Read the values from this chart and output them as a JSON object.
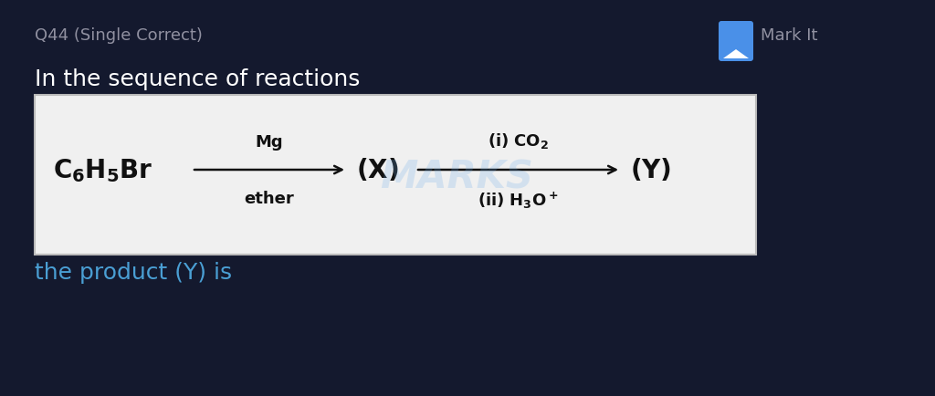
{
  "bg_color": "#14192e",
  "header_text": "Q44 (Single Correct)",
  "header_color": "#9090a0",
  "header_fontsize": 13,
  "mark_it_text": "Mark It",
  "mark_it_color": "#9090a0",
  "mark_it_fontsize": 13,
  "bookmark_color_top": "#5ab0f0",
  "bookmark_color_bottom": "#3070c0",
  "intro_text": "In the sequence of reactions",
  "intro_color": "#ffffff",
  "intro_fontsize": 18,
  "box_facecolor": "#f0f0f0",
  "box_edgecolor": "#bbbbbb",
  "reaction_color": "#111111",
  "footer_text": "the product (Y) is",
  "footer_color": "#4a9fd4",
  "footer_fontsize": 18,
  "arrow1_label_top": "Mg",
  "arrow1_label_bottom": "ether",
  "arrow2_label_top": "(i) CO$_2$",
  "arrow2_label_bottom": "(ii) H$_3$O$^+$"
}
